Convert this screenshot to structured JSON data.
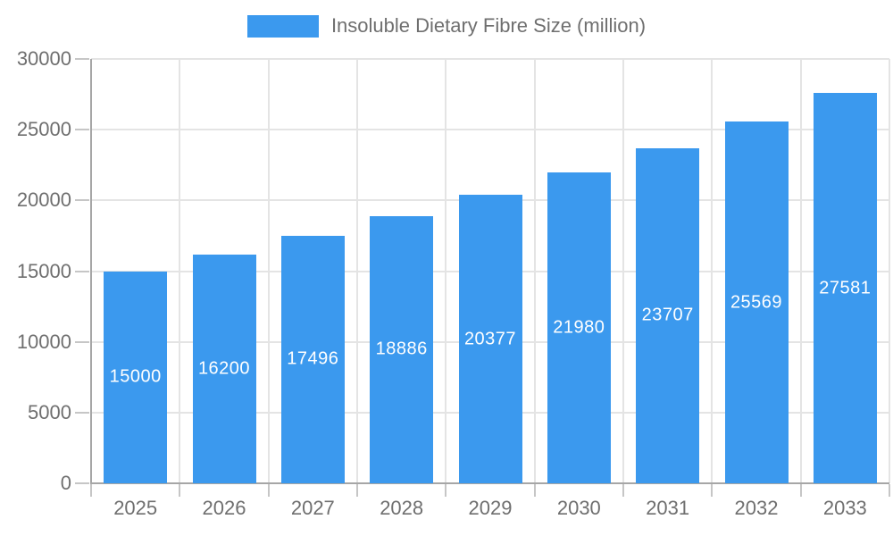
{
  "colors": {
    "bar": "#3b99ee",
    "bar_label": "#ffffff",
    "axis": "#a6a6a6",
    "grid": "#e4e4e4",
    "tick": "#c6c6c6",
    "text": "#6f6f6f",
    "background": "#ffffff"
  },
  "chart_data": {
    "type": "bar",
    "title": "",
    "legend_label": "Insoluble Dietary Fibre Size (million)",
    "legend_position": "top",
    "categories": [
      "2025",
      "2026",
      "2027",
      "2028",
      "2029",
      "2030",
      "2031",
      "2032",
      "2033"
    ],
    "series": [
      {
        "name": "Insoluble Dietary Fibre Size (million)",
        "values": [
          15000,
          16200,
          17496,
          18886,
          20377,
          21980,
          23707,
          25569,
          27581
        ]
      }
    ],
    "bar_value_labels": [
      "15000",
      "16200",
      "17496",
      "18886",
      "20377",
      "21980",
      "23707",
      "25569",
      "27581"
    ],
    "xlabel": "",
    "ylabel": "",
    "ylim": [
      0,
      30000
    ],
    "yticks": [
      0,
      5000,
      10000,
      15000,
      20000,
      25000,
      30000
    ],
    "ytick_labels": [
      "0",
      "5000",
      "10000",
      "15000",
      "20000",
      "25000",
      "30000"
    ],
    "grid": true,
    "value_label_position": "inside-center-white"
  }
}
